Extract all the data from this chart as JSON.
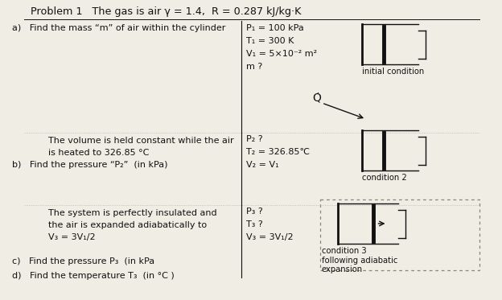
{
  "bg_color": "#f0ede4",
  "title_line": "Problem 1   The gas is air γ = 1.4,  R = 0.287 kJ/kg·K",
  "part_a_q": "a)   Find the mass “m” of air within the cylinder",
  "p1": "P₁ = 100 kPa",
  "t1": "T₁ = 300 K",
  "v1": "V₁ = 5×10⁻² m²",
  "m_ask": "m ?",
  "b_desc1": "The volume is held constant while the air",
  "b_desc2": "is heated to 326.85 °C",
  "part_b_q": "b)   Find the pressure “P₂”  (in kPa)",
  "p2": "P₂ ?",
  "t2": "T₂ = 326.85℃",
  "v2": "V₂ = V₁",
  "c_desc1": "The system is perfectly insulated and",
  "c_desc2": "the air is expanded adiabatically to",
  "c_desc3": "V₃ = 3V₁/2",
  "part_c_q": "c)   Find the pressure P₃  (in kPa",
  "part_d_q": "d)   Find the temperature T₃  (in °C )",
  "p3": "P₃ ?",
  "t3": "T₃ ?",
  "v3": "V₃ = 3V₁/2",
  "label_init": "initial condition",
  "label_c2": "condition 2",
  "label_c3": "condition 3\nfollowing adiabatic\nexpansion",
  "qdot": "Q̇",
  "tc": "#111111",
  "fs": 8.0,
  "fs_title": 9.2,
  "fs_small": 7.2
}
